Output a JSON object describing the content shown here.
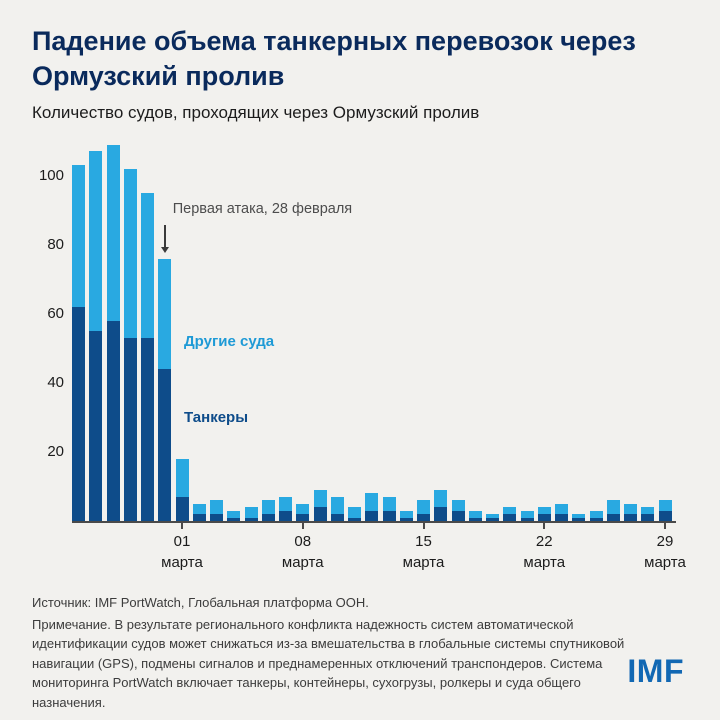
{
  "header": {
    "title": "Падение объема танкерных перевозок через Ормузский пролив",
    "subtitle": "Количество судов, проходящих через Ормузский пролив"
  },
  "chart_data": {
    "type": "bar",
    "stacked": true,
    "title": "Падение объема танкерных перевозок через Ормузский пролив",
    "subtitle": "Количество судов, проходящих через Ормузский пролив",
    "xlabel": "",
    "ylabel": "",
    "ylim": [
      0,
      110
    ],
    "grid": false,
    "legend_position": "inline",
    "categories": [
      "23.02",
      "24.02",
      "25.02",
      "26.02",
      "27.02",
      "28.02",
      "01.03",
      "02.03",
      "03.03",
      "04.03",
      "05.03",
      "06.03",
      "07.03",
      "08.03",
      "09.03",
      "10.03",
      "11.03",
      "12.03",
      "13.03",
      "14.03",
      "15.03",
      "16.03",
      "17.03",
      "18.03",
      "19.03",
      "20.03",
      "21.03",
      "22.03",
      "23.03",
      "24.03",
      "25.03",
      "26.03",
      "27.03",
      "28.03",
      "29.03"
    ],
    "series": [
      {
        "name": "Танкеры",
        "color": "#0e4c8a",
        "values": [
          62,
          55,
          58,
          53,
          53,
          44,
          7,
          2,
          2,
          1,
          1,
          2,
          3,
          2,
          4,
          2,
          1,
          3,
          3,
          1,
          2,
          4,
          3,
          1,
          1,
          2,
          1,
          2,
          2,
          1,
          1,
          2,
          2,
          2,
          3
        ]
      },
      {
        "name": "Другие суда",
        "color": "#29a9e1",
        "values": [
          41,
          52,
          51,
          49,
          42,
          32,
          11,
          3,
          4,
          2,
          3,
          4,
          4,
          3,
          5,
          5,
          3,
          5,
          4,
          2,
          4,
          5,
          3,
          2,
          1,
          2,
          2,
          2,
          3,
          1,
          2,
          4,
          3,
          2,
          3
        ]
      }
    ],
    "y_ticks": [
      20,
      40,
      60,
      80,
      100
    ],
    "x_ticks": [
      {
        "index": 6,
        "label_top": "01",
        "label_bottom": "марта"
      },
      {
        "index": 13,
        "label_top": "08",
        "label_bottom": "марта"
      },
      {
        "index": 20,
        "label_top": "15",
        "label_bottom": "марта"
      },
      {
        "index": 27,
        "label_top": "22",
        "label_bottom": "марта"
      },
      {
        "index": 34,
        "label_top": "29",
        "label_bottom": "марта"
      }
    ],
    "annotation": {
      "text": "Первая атака, 28 февраля",
      "bar_index": 5
    },
    "inline_labels": [
      {
        "text": "Другие суда",
        "color": "#1e9ad6"
      },
      {
        "text": "Танкеры",
        "color": "#0e4c8a"
      }
    ]
  },
  "footer": {
    "source": "Источник: IMF PortWatch, Глобальная платформа ООН.",
    "note": "Примечание. В результате регионального конфликта надежность систем автоматической идентификации судов может снижаться из-за вмешательства в глобальные системы спутниковой навигации (GPS), подмены сигналов и преднамеренных отключений транспондеров. Система мониторинга PortWatch включает танкеры, контейнеры, сухогрузы, ролкеры и суда общего назначения.",
    "logo": "IMF"
  },
  "colors": {
    "background": "#f2f1ee",
    "title": "#0a2a5c",
    "tankers": "#0e4c8a",
    "other_ships": "#29a9e1",
    "axis": "#4a4a4a",
    "logo": "#1268b3"
  }
}
